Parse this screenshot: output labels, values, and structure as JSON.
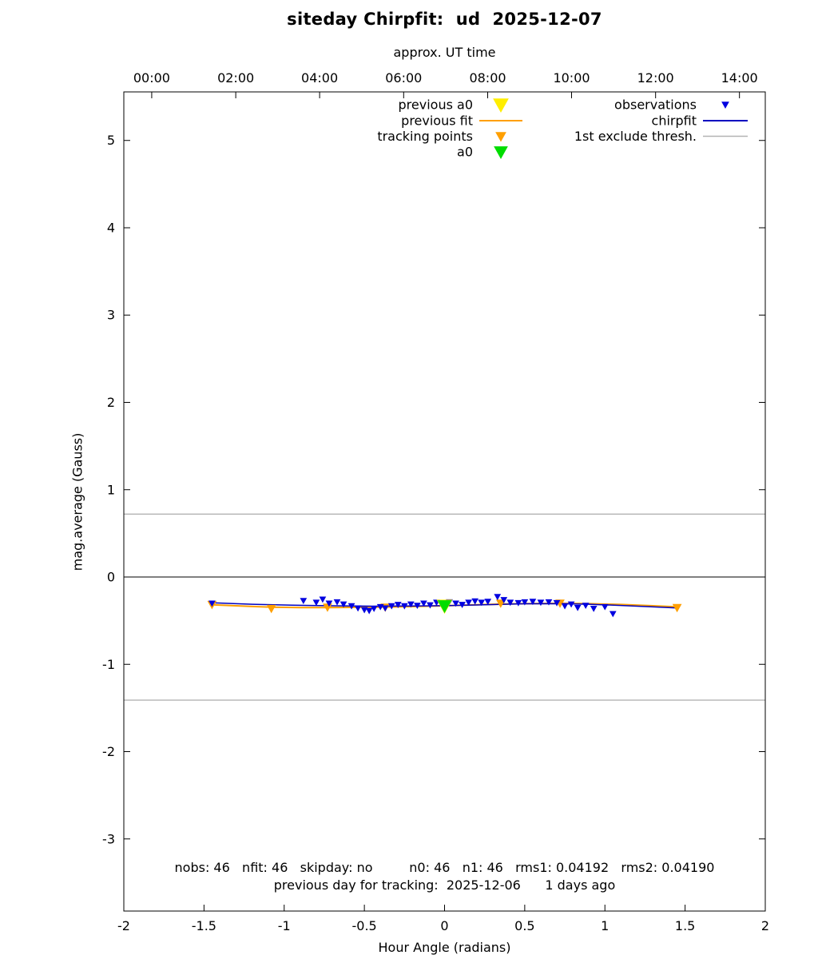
{
  "chart_data": {
    "type": "scatter",
    "title": "siteday Chirpfit:  ud  2025-12-07",
    "top_axis": {
      "label": "approx. UT time",
      "ticks": [
        {
          "label": "00:00",
          "ha": -1.826
        },
        {
          "label": "02:00",
          "ha": -1.302
        },
        {
          "label": "04:00",
          "ha": -0.779
        },
        {
          "label": "06:00",
          "ha": -0.255
        },
        {
          "label": "08:00",
          "ha": 0.269
        },
        {
          "label": "10:00",
          "ha": 0.792
        },
        {
          "label": "12:00",
          "ha": 1.316
        },
        {
          "label": "14:00",
          "ha": 1.839
        }
      ]
    },
    "x_axis": {
      "label": "Hour Angle (radians)",
      "lim": [
        -2,
        2
      ],
      "ticks": [
        -2,
        -1.5,
        -1,
        -0.5,
        0,
        0.5,
        1,
        1.5,
        2
      ],
      "tick_labels": [
        "-2",
        "-1.5",
        "-1",
        "-0.5",
        "0",
        "0.5",
        "1",
        "1.5",
        "2"
      ]
    },
    "y_axis": {
      "label": "mag.average (Gauss)",
      "lim": [
        -3.826,
        5.556
      ],
      "ticks": [
        5,
        4,
        3,
        2,
        1,
        0,
        -1,
        -2,
        -3
      ],
      "tick_labels": [
        "5",
        "4",
        "3",
        "2",
        "1",
        "0",
        "-1",
        "-2",
        "-3"
      ]
    },
    "zero_line": 0,
    "exclude_thresholds": [
      0.72,
      -1.41
    ],
    "colors": {
      "observations": "#0000e0",
      "chirpfit": "#0000c0",
      "previous_fit": "#ff9f00",
      "tracking_points": "#ff9f00",
      "previous_a0": "#ffee00",
      "a0": "#00dd00",
      "threshold": "#b3b3b3",
      "zero": "#000000"
    },
    "series": {
      "observations": {
        "name": "observations",
        "points": [
          [
            -1.45,
            -0.3
          ],
          [
            -0.88,
            -0.27
          ],
          [
            -0.8,
            -0.29
          ],
          [
            -0.76,
            -0.255
          ],
          [
            -0.72,
            -0.3
          ],
          [
            -0.67,
            -0.285
          ],
          [
            -0.63,
            -0.31
          ],
          [
            -0.58,
            -0.33
          ],
          [
            -0.54,
            -0.355
          ],
          [
            -0.5,
            -0.375
          ],
          [
            -0.47,
            -0.385
          ],
          [
            -0.44,
            -0.36
          ],
          [
            -0.4,
            -0.34
          ],
          [
            -0.37,
            -0.355
          ],
          [
            -0.33,
            -0.33
          ],
          [
            -0.29,
            -0.315
          ],
          [
            -0.25,
            -0.33
          ],
          [
            -0.21,
            -0.31
          ],
          [
            -0.17,
            -0.325
          ],
          [
            -0.13,
            -0.3
          ],
          [
            -0.09,
            -0.32
          ],
          [
            -0.05,
            -0.29
          ],
          [
            -0.01,
            -0.31
          ],
          [
            0.03,
            -0.285
          ],
          [
            0.07,
            -0.3
          ],
          [
            0.11,
            -0.315
          ],
          [
            0.15,
            -0.29
          ],
          [
            0.19,
            -0.275
          ],
          [
            0.23,
            -0.29
          ],
          [
            0.27,
            -0.28
          ],
          [
            0.33,
            -0.225
          ],
          [
            0.37,
            -0.26
          ],
          [
            0.41,
            -0.29
          ],
          [
            0.46,
            -0.295
          ],
          [
            0.5,
            -0.285
          ],
          [
            0.55,
            -0.28
          ],
          [
            0.6,
            -0.29
          ],
          [
            0.65,
            -0.285
          ],
          [
            0.7,
            -0.295
          ],
          [
            0.75,
            -0.33
          ],
          [
            0.79,
            -0.31
          ],
          [
            0.83,
            -0.35
          ],
          [
            0.88,
            -0.325
          ],
          [
            0.93,
            -0.36
          ],
          [
            1.0,
            -0.34
          ],
          [
            1.05,
            -0.42
          ]
        ]
      },
      "tracking_points": {
        "name": "tracking points",
        "points": [
          [
            -1.45,
            -0.315
          ],
          [
            -1.08,
            -0.36
          ],
          [
            -0.73,
            -0.345
          ],
          [
            -0.37,
            -0.345
          ],
          [
            0.35,
            -0.3
          ],
          [
            0.72,
            -0.3
          ],
          [
            1.45,
            -0.35
          ]
        ]
      },
      "previous_a0": {
        "name": "previous a0",
        "point": [
          0,
          -0.33
        ]
      },
      "a0": {
        "name": "a0",
        "point": [
          0,
          -0.33
        ]
      },
      "chirpfit": {
        "name": "chirpfit",
        "line": [
          [
            -1.45,
            -0.295
          ],
          [
            -1.2,
            -0.312
          ],
          [
            -0.95,
            -0.323
          ],
          [
            -0.7,
            -0.33
          ],
          [
            -0.45,
            -0.334
          ],
          [
            -0.2,
            -0.332
          ],
          [
            0.0,
            -0.328
          ],
          [
            0.2,
            -0.32
          ],
          [
            0.35,
            -0.313
          ],
          [
            0.5,
            -0.307
          ],
          [
            0.7,
            -0.305
          ],
          [
            0.9,
            -0.312
          ],
          [
            1.1,
            -0.326
          ],
          [
            1.3,
            -0.342
          ],
          [
            1.45,
            -0.355
          ]
        ]
      },
      "previous_fit": {
        "name": "previous fit",
        "line": [
          [
            -1.45,
            -0.318
          ],
          [
            -1.2,
            -0.338
          ],
          [
            -1.08,
            -0.345
          ],
          [
            -0.9,
            -0.35
          ],
          [
            -0.73,
            -0.35
          ],
          [
            -0.5,
            -0.347
          ],
          [
            -0.37,
            -0.344
          ],
          [
            -0.2,
            -0.339
          ],
          [
            0.0,
            -0.33
          ],
          [
            0.2,
            -0.318
          ],
          [
            0.35,
            -0.31
          ],
          [
            0.5,
            -0.305
          ],
          [
            0.72,
            -0.302
          ],
          [
            0.9,
            -0.306
          ],
          [
            1.1,
            -0.315
          ],
          [
            1.3,
            -0.33
          ],
          [
            1.45,
            -0.342
          ]
        ]
      }
    },
    "legend": {
      "left": [
        {
          "label": "previous a0",
          "type": "triangle",
          "color": "#ffee00",
          "size": 9
        },
        {
          "label": "previous fit",
          "type": "line",
          "color": "#ff9f00"
        },
        {
          "label": "tracking points",
          "type": "triangle",
          "color": "#ff9f00",
          "size": 6
        },
        {
          "label": "a0",
          "type": "triangle",
          "color": "#00dd00",
          "size": 8
        }
      ],
      "right": [
        {
          "label": "observations",
          "type": "triangle",
          "color": "#0000e0",
          "size": 4
        },
        {
          "label": "chirpfit",
          "type": "line",
          "color": "#0000c0"
        },
        {
          "label": "1st exclude thresh.",
          "type": "line",
          "color": "#b3b3b3"
        }
      ]
    },
    "stats": {
      "line1": "nobs: 46   nfit: 46   skipday: no         n0: 46   n1: 46   rms1: 0.04192   rms2: 0.04190",
      "line2": "previous day for tracking:  2025-12-06      1 days ago"
    },
    "marker_sizes": {
      "observations": 3.5,
      "tracking_points": 5,
      "a0": 8,
      "previous_a0": 9
    }
  }
}
